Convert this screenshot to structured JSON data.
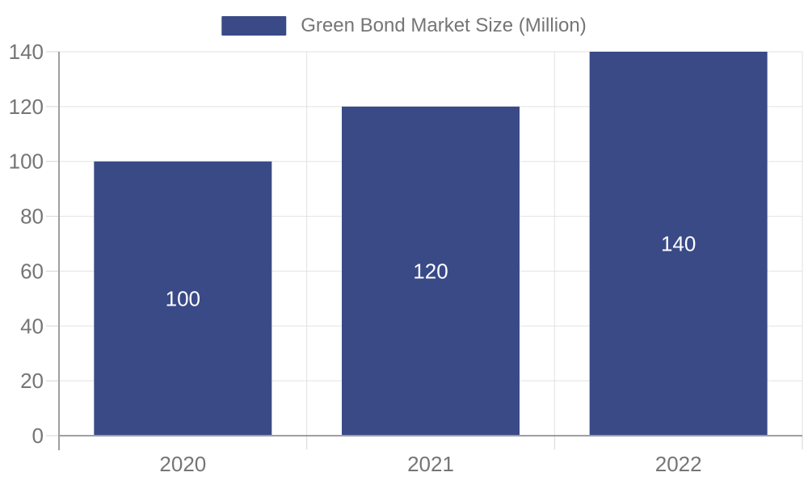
{
  "legend": {
    "label": "Green Bond Market Size (Million)",
    "swatch_color": "#3A4A87"
  },
  "chart_data": {
    "type": "bar",
    "title": "Green Bond Market Size (Million)",
    "categories": [
      "2020",
      "2021",
      "2022"
    ],
    "values": [
      100,
      120,
      140
    ],
    "bar_value_labels": [
      "100",
      "120",
      "140"
    ],
    "xlabel": "",
    "ylabel": "",
    "ylim": [
      0,
      140
    ],
    "yticks": [
      0,
      20,
      40,
      60,
      80,
      100,
      120,
      140
    ],
    "grid": true,
    "legend_position": "top-center",
    "colors": {
      "bar": "#3A4A87",
      "bar_label": "#FFFFFF",
      "grid": "#E2E2E2",
      "tick": "#D6D6D6",
      "axis": "#9E9EA4",
      "text": "#757575"
    }
  }
}
